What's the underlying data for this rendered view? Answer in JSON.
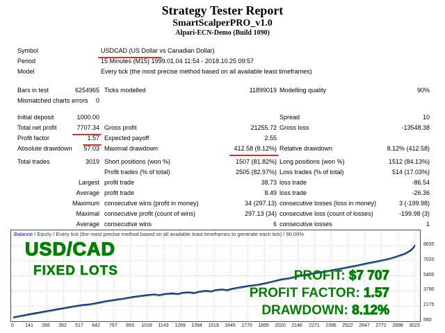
{
  "header": {
    "title": "Strategy Tester Report",
    "subtitle": "SmartScalperPRO_v1.0",
    "server": "Alpari-ECN-Demo (Build 1090)"
  },
  "report": {
    "rows": [
      {
        "label": "Symbol",
        "value": "USDCAD (US Dollar vs Canadian Dollar)",
        "wide": true,
        "ul": true
      },
      {
        "label": "Period",
        "value": "15 Minutes (M15) 1999.01.04 11:54 - 2018.10.25 09:57",
        "wide": true
      },
      {
        "label": "Model",
        "value": "Every tick (the most precise method based on all available least timeframes)",
        "wide": true
      },
      {
        "spacer": 12
      },
      {
        "cells": [
          "Bars in test",
          "6254965",
          "Ticks modelled",
          "11899019",
          "Modelling quality",
          "90%"
        ]
      },
      {
        "cells": [
          "Mismatched charts errors",
          "0",
          "",
          "",
          "",
          ""
        ]
      },
      {
        "spacer": 9
      },
      {
        "cells": [
          "Initial deposit",
          "1000.00",
          "",
          "",
          "Spread",
          "10"
        ]
      },
      {
        "cells": [
          "Total net profit",
          "7707.34",
          "Gross profit",
          "21255.72",
          "Gross loss",
          "-13548.38"
        ],
        "ul": [
          1
        ]
      },
      {
        "cells": [
          "Profit factor",
          "1.57",
          "Expected payoff",
          "2.55",
          "",
          ""
        ],
        "ul": [
          1
        ]
      },
      {
        "cells": [
          "Absolute drawdown",
          "57.03",
          "Maximal drawdown",
          "412.58 (8.12%)",
          "Relative drawdown",
          "8.12% (412.58)"
        ],
        "ul": [
          3
        ]
      },
      {
        "spacer": 4
      },
      {
        "cells": [
          "Total trades",
          "3019",
          "Short positions (won %)",
          "1507 (81.82%)",
          "Long positions (won %)",
          "1512 (84.13%)"
        ]
      },
      {
        "cells": [
          "",
          "",
          "Profit trades (% of total)",
          "2505 (82.97%)",
          "Loss trades (% of total)",
          "514 (17.03%)"
        ]
      },
      {
        "cells": [
          "",
          "Largest",
          "profit trade",
          "38.73",
          "loss trade",
          "-86.54"
        ]
      },
      {
        "cells": [
          "",
          "Average",
          "profit trade",
          "8.49",
          "loss trade",
          "-26.36"
        ]
      },
      {
        "cells": [
          "",
          "Maximum",
          "consecutive wins (profit in money)",
          "34 (297.13)",
          "consecutive losses (loss in money)",
          "3 (-199.98)"
        ]
      },
      {
        "cells": [
          "",
          "Maximal",
          "consecutive profit (count of wins)",
          "297.13 (34)",
          "consecutive loss (count of losses)",
          "-199.98 (3)"
        ]
      },
      {
        "cells": [
          "",
          "Average",
          "consecutive wins",
          "6",
          "consecutive losses",
          "1"
        ]
      }
    ]
  },
  "chart_data": {
    "type": "line",
    "legend_parts": [
      {
        "t": "Balance",
        "c": "#0000c8"
      },
      {
        "t": " / ",
        "c": "#333333"
      },
      {
        "t": "Equity",
        "c": "#008000"
      },
      {
        "t": " / Every tick (the most precise method based on all available least timeframes to generate each tick) / 90.00%",
        "c": "#333333"
      }
    ],
    "colors": {
      "balance": "#0000bb",
      "equity": "#008000",
      "grid": "#c0c0c0"
    },
    "x_ticks": [
      0,
      141,
      266,
      392,
      517,
      642,
      767,
      893,
      1018,
      1143,
      1269,
      1394,
      1519,
      1645,
      1770,
      1895,
      2020,
      2146,
      2271,
      2396,
      2522,
      2647,
      2772,
      2898,
      3023
    ],
    "y_ticks": [
      8635,
      7020,
      5405,
      3790,
      2175,
      560
    ],
    "x_range": [
      0,
      3023
    ],
    "series": [
      {
        "name": "Balance",
        "points": [
          [
            0,
            1000
          ],
          [
            60,
            1160
          ],
          [
            141,
            1375
          ],
          [
            200,
            1520
          ],
          [
            266,
            1690
          ],
          [
            330,
            1855
          ],
          [
            392,
            2010
          ],
          [
            450,
            2160
          ],
          [
            517,
            2310
          ],
          [
            580,
            2400
          ],
          [
            642,
            2560
          ],
          [
            700,
            2720
          ],
          [
            767,
            2870
          ],
          [
            830,
            3000
          ],
          [
            893,
            3160
          ],
          [
            950,
            3270
          ],
          [
            1018,
            3390
          ],
          [
            1060,
            3440
          ],
          [
            1100,
            3370
          ],
          [
            1143,
            3500
          ],
          [
            1200,
            3560
          ],
          [
            1240,
            3490
          ],
          [
            1269,
            3610
          ],
          [
            1320,
            3680
          ],
          [
            1360,
            3600
          ],
          [
            1394,
            3720
          ],
          [
            1450,
            3840
          ],
          [
            1490,
            3770
          ],
          [
            1519,
            3900
          ],
          [
            1570,
            3980
          ],
          [
            1610,
            3900
          ],
          [
            1645,
            4050
          ],
          [
            1700,
            4180
          ],
          [
            1770,
            4350
          ],
          [
            1840,
            4480
          ],
          [
            1895,
            4640
          ],
          [
            1950,
            4820
          ],
          [
            2020,
            5060
          ],
          [
            2080,
            5180
          ],
          [
            2146,
            5400
          ],
          [
            2210,
            5560
          ],
          [
            2271,
            5720
          ],
          [
            2340,
            5870
          ],
          [
            2396,
            6030
          ],
          [
            2460,
            6180
          ],
          [
            2522,
            6360
          ],
          [
            2590,
            6540
          ],
          [
            2647,
            6720
          ],
          [
            2710,
            6900
          ],
          [
            2772,
            7080
          ],
          [
            2840,
            7300
          ],
          [
            2898,
            7560
          ],
          [
            2950,
            7820
          ],
          [
            2990,
            8150
          ],
          [
            3010,
            8450
          ],
          [
            3023,
            8707
          ]
        ]
      }
    ]
  },
  "annotations": {
    "underline_color": "#d43425",
    "pair": "USD/CAD",
    "mode": "FIXED LOTS",
    "stat_color": "#008000",
    "stats": [
      {
        "label": "PROFIT: ",
        "value": "$7 707"
      },
      {
        "label": "PROFIT FACTOR: ",
        "value": "1.57"
      },
      {
        "label": "DRAWDOWN: ",
        "value": "8.12%"
      }
    ]
  }
}
